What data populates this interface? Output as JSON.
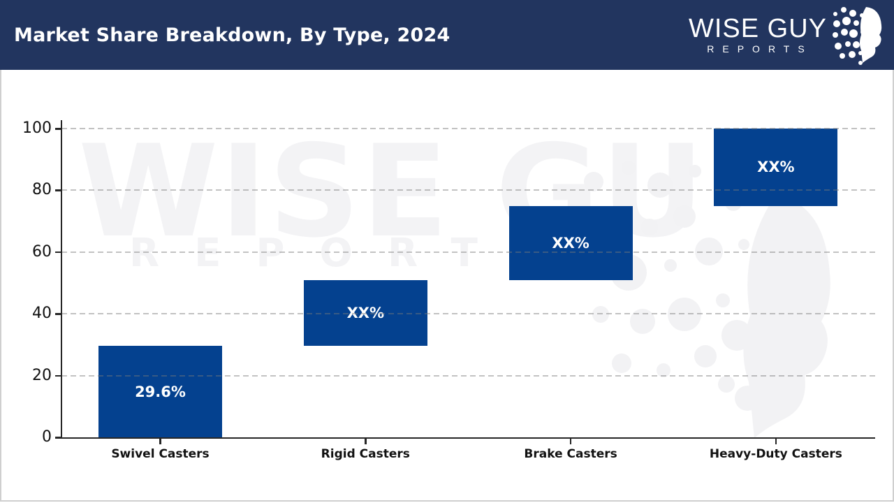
{
  "header": {
    "title": "Market Share Breakdown, By Type, 2024",
    "logo": {
      "line1": "WISE GUY",
      "line2": "REPORTS"
    }
  },
  "watermark": {
    "line1": "WISE GU",
    "line2": "REPORTS"
  },
  "colors": {
    "header_bg": "#22355f",
    "bar": "#04418f",
    "bar_label": "#ffffff",
    "axis": "#262626",
    "grid_dash": "#d4d4d4",
    "tick_label": "#111111",
    "watermark": "#f3f3f5"
  },
  "chart_data": {
    "type": "bar",
    "subtype": "waterfall-floating-bars",
    "title": "Market Share Breakdown, By Type, 2024",
    "categories": [
      "Swivel Casters",
      "Rigid Casters",
      "Brake Casters",
      "Heavy-Duty Casters"
    ],
    "segments": [
      {
        "category": "Swivel Casters",
        "start": 0,
        "end": 29.6,
        "label": "29.6%"
      },
      {
        "category": "Rigid Casters",
        "start": 29.6,
        "end": 51,
        "label": "XX%"
      },
      {
        "category": "Brake Casters",
        "start": 51,
        "end": 75,
        "label": "XX%"
      },
      {
        "category": "Heavy-Duty Casters",
        "start": 75,
        "end": 100,
        "label": "XX%"
      }
    ],
    "yticks": [
      0,
      20,
      40,
      60,
      80,
      100
    ],
    "ylim": [
      0,
      103
    ],
    "xlabel": "",
    "ylabel": "",
    "grid": "horizontal-dashed",
    "legend": "none",
    "value_labels_visible": true
  }
}
